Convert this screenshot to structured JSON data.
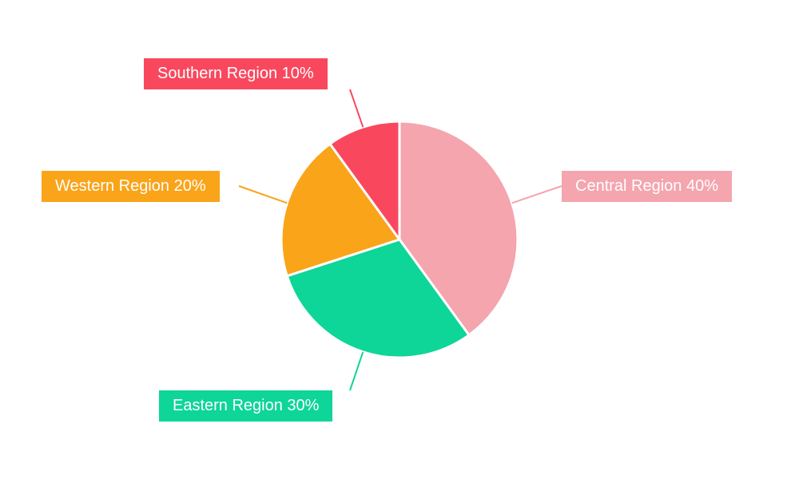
{
  "chart_data": {
    "type": "pie",
    "title": "",
    "categories": [
      "Central Region",
      "Eastern Region",
      "Western Region",
      "Southern Region"
    ],
    "values": [
      40,
      30,
      20,
      10
    ],
    "unit": "%",
    "start_angle_deg": 0,
    "direction": "clockwise",
    "legend": "none",
    "background_color": "#ffffff",
    "slice_border_color": "#ffffff",
    "label_text_color": "#ffffff",
    "slices": [
      {
        "label": "Central Region",
        "value": 40,
        "percent_text": "40%",
        "color": "#f4a5ae",
        "callout": "Central Region 40%"
      },
      {
        "label": "Eastern Region",
        "value": 30,
        "percent_text": "30%",
        "color": "#0ed598",
        "callout": "Eastern Region 30%"
      },
      {
        "label": "Western Region",
        "value": 20,
        "percent_text": "20%",
        "color": "#faa41a",
        "callout": "Western Region 20%"
      },
      {
        "label": "Southern Region",
        "value": 10,
        "percent_text": "10%",
        "color": "#f9485e",
        "callout": "Southern Region 10%"
      }
    ]
  }
}
